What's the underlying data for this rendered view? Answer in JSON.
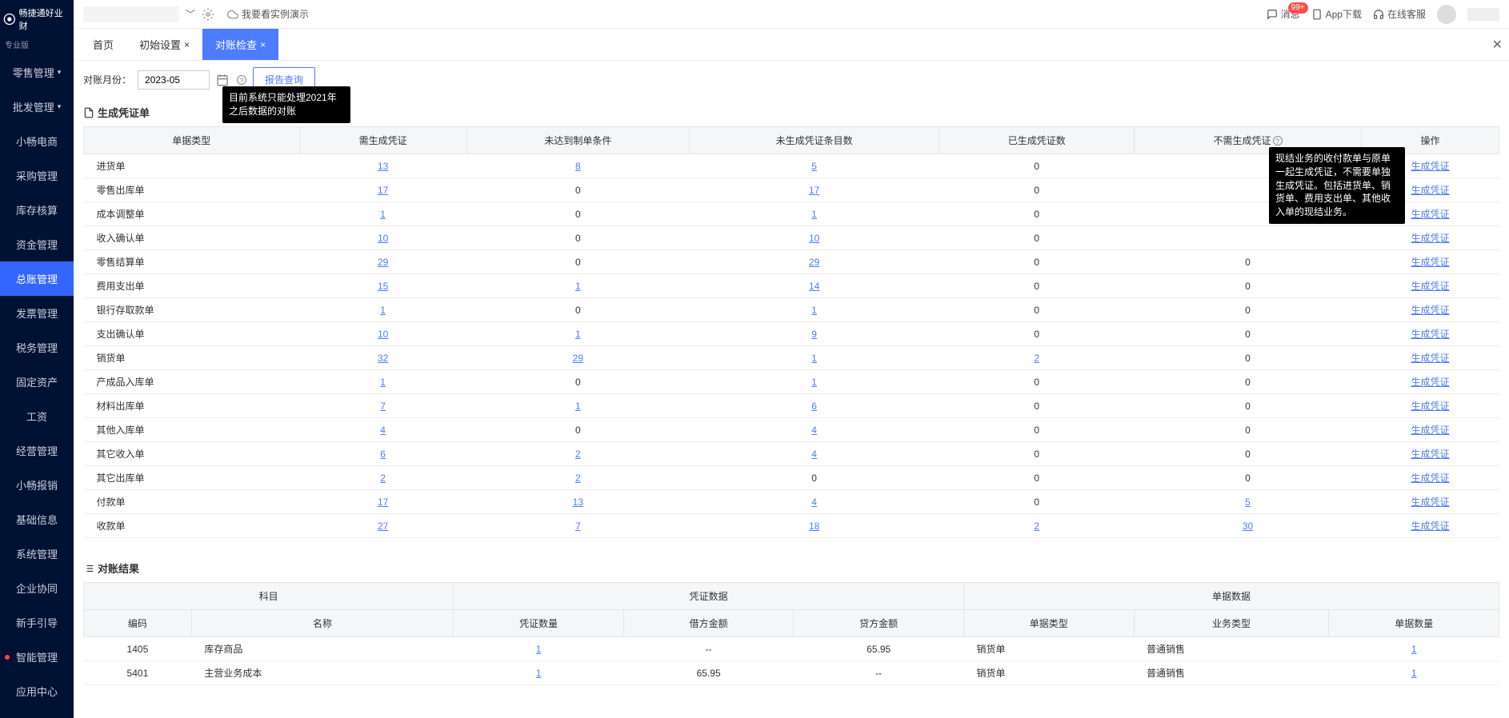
{
  "brand": {
    "name": "畅捷通好业财",
    "edition": "专业版"
  },
  "sidebar": [
    {
      "label": "零售管理",
      "chev": true
    },
    {
      "label": "批发管理",
      "chev": true
    },
    {
      "label": "小畅电商"
    },
    {
      "label": "采购管理"
    },
    {
      "label": "库存核算"
    },
    {
      "label": "资金管理"
    },
    {
      "label": "总账管理",
      "active": true
    },
    {
      "label": "发票管理"
    },
    {
      "label": "税务管理"
    },
    {
      "label": "固定资产"
    },
    {
      "label": "工资"
    },
    {
      "label": "经营管理"
    },
    {
      "label": "小畅报销"
    },
    {
      "label": "基础信息"
    },
    {
      "label": "系统管理"
    },
    {
      "label": "企业协同"
    },
    {
      "label": "新手引导"
    },
    {
      "label": "智能管理",
      "dot": true
    },
    {
      "label": "应用中心"
    }
  ],
  "topbar": {
    "demo": "我要看实例演示",
    "msg": "消息",
    "msg_badge": "99+",
    "app": "App下载",
    "cs": "在线客服"
  },
  "tabs": [
    {
      "label": "首页"
    },
    {
      "label": "初始设置",
      "closable": true
    },
    {
      "label": "对账检查",
      "closable": true,
      "active": true
    }
  ],
  "toolbar": {
    "month_label": "对账月份：",
    "month_value": "2023-05",
    "report_btn": "报告查询",
    "tooltip1": "目前系统只能处理2021年之后数据的对账"
  },
  "section1": {
    "title": "生成凭证单",
    "columns": [
      "单据类型",
      "需生成凭证",
      "未达到制单条件",
      "未生成凭证条目数",
      "已生成凭证数",
      "不需生成凭证",
      "操作"
    ],
    "help_col": 5,
    "tooltip2": "现结业务的收付款单与原单一起生成凭证，不需要单独生成凭证。包括进货单、销货单、费用支出单、其他收入单的现结业务。",
    "op_label": "生成凭证",
    "rows": [
      {
        "type": "进货单",
        "need": "13",
        "cond": "8",
        "pend": "5",
        "done": "0",
        "nogen": "",
        "need_link": true,
        "cond_link": true,
        "pend_link": true
      },
      {
        "type": "零售出库单",
        "need": "17",
        "cond": "0",
        "pend": "17",
        "done": "0",
        "nogen": "",
        "need_link": true,
        "pend_link": true
      },
      {
        "type": "成本调整单",
        "need": "1",
        "cond": "0",
        "pend": "1",
        "done": "0",
        "nogen": "",
        "need_link": true,
        "pend_link": true
      },
      {
        "type": "收入确认单",
        "need": "10",
        "cond": "0",
        "pend": "10",
        "done": "0",
        "nogen": "",
        "need_link": true,
        "pend_link": true
      },
      {
        "type": "零售结算单",
        "need": "29",
        "cond": "0",
        "pend": "29",
        "done": "0",
        "nogen": "0",
        "need_link": true,
        "pend_link": true
      },
      {
        "type": "费用支出单",
        "need": "15",
        "cond": "1",
        "pend": "14",
        "done": "0",
        "nogen": "0",
        "need_link": true,
        "cond_link": true,
        "pend_link": true
      },
      {
        "type": "银行存取款单",
        "need": "1",
        "cond": "0",
        "pend": "1",
        "done": "0",
        "nogen": "0",
        "need_link": true,
        "pend_link": true
      },
      {
        "type": "支出确认单",
        "need": "10",
        "cond": "1",
        "pend": "9",
        "done": "0",
        "nogen": "0",
        "need_link": true,
        "cond_link": true,
        "pend_link": true
      },
      {
        "type": "销货单",
        "need": "32",
        "cond": "29",
        "pend": "1",
        "done": "2",
        "nogen": "0",
        "need_link": true,
        "cond_link": true,
        "pend_link": true,
        "done_link": true
      },
      {
        "type": "产成品入库单",
        "need": "1",
        "cond": "0",
        "pend": "1",
        "done": "0",
        "nogen": "0",
        "need_link": true,
        "pend_link": true
      },
      {
        "type": "材料出库单",
        "need": "7",
        "cond": "1",
        "pend": "6",
        "done": "0",
        "nogen": "0",
        "need_link": true,
        "cond_link": true,
        "pend_link": true
      },
      {
        "type": "其他入库单",
        "need": "4",
        "cond": "0",
        "pend": "4",
        "done": "0",
        "nogen": "0",
        "need_link": true,
        "pend_link": true
      },
      {
        "type": "其它收入单",
        "need": "6",
        "cond": "2",
        "pend": "4",
        "done": "0",
        "nogen": "0",
        "need_link": true,
        "cond_link": true,
        "pend_link": true
      },
      {
        "type": "其它出库单",
        "need": "2",
        "cond": "2",
        "pend": "0",
        "done": "0",
        "nogen": "0",
        "need_link": true,
        "cond_link": true
      },
      {
        "type": "付款单",
        "need": "17",
        "cond": "13",
        "pend": "4",
        "done": "0",
        "nogen": "5",
        "need_link": true,
        "cond_link": true,
        "pend_link": true,
        "nogen_link": true
      },
      {
        "type": "收款单",
        "need": "27",
        "cond": "7",
        "pend": "18",
        "done": "2",
        "nogen": "30",
        "need_link": true,
        "cond_link": true,
        "pend_link": true,
        "done_link": true,
        "nogen_link": true
      }
    ]
  },
  "section2": {
    "title": "对账结果",
    "header_top": [
      "科目",
      "凭证数据",
      "单据数据"
    ],
    "header_top_span": [
      2,
      3,
      3
    ],
    "header": [
      "编码",
      "名称",
      "凭证数量",
      "借方金额",
      "贷方金额",
      "单据类型",
      "业务类型",
      "单据数量"
    ],
    "rows": [
      {
        "code": "1405",
        "name": "库存商品",
        "vc": "1",
        "debit": "--",
        "credit": "65.95",
        "btype": "销货单",
        "biz": "普通销售",
        "bc": "1"
      },
      {
        "code": "5401",
        "name": "主营业务成本",
        "vc": "1",
        "debit": "65.95",
        "credit": "--",
        "btype": "销货单",
        "biz": "普通销售",
        "bc": "1"
      }
    ]
  }
}
